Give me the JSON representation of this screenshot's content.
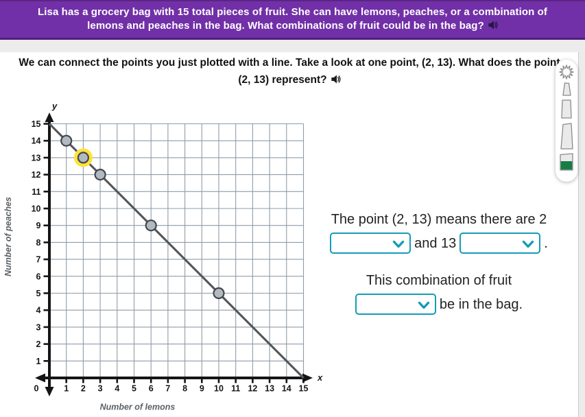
{
  "header": {
    "prompt": "Lisa has a grocery bag with 15 total pieces of fruit. She can have lemons, peaches, or a combination of lemons and peaches in the bag. What combinations of fruit could be in the bag?",
    "background_color": "#7130a7"
  },
  "question": {
    "text": "We can connect the points you just plotted with a line. Take a look at one point, (2, 13). What does the point (2, 13) represent?"
  },
  "answer": {
    "sentence1_part1": "The point (2, 13) means there are 2",
    "sentence1_part2": "and 13",
    "sentence1_part3": ".",
    "dropdown1_value": "",
    "dropdown2_value": "",
    "sentence2_part1": "This combination of fruit",
    "sentence2_part2": "be in the bag.",
    "dropdown3_value": "",
    "accent_color": "#149bb8"
  },
  "toolbar": {
    "sun_icon": "sun-burst-icon",
    "segments": [
      {
        "name": "tower-piece-1",
        "progress": 0
      },
      {
        "name": "tower-piece-2",
        "progress": 0
      },
      {
        "name": "tower-piece-3",
        "progress": 0
      },
      {
        "name": "tower-piece-4",
        "progress": 0.55
      }
    ],
    "progress_color": "#177d45"
  },
  "chart_data": {
    "type": "line",
    "title": "",
    "xlabel": "Number of lemons",
    "ylabel": "Number of peaches",
    "x_axis_letter": "x",
    "y_axis_letter": "y",
    "xlim": [
      0,
      15
    ],
    "ylim": [
      0,
      15
    ],
    "x_ticks": [
      0,
      1,
      2,
      3,
      4,
      5,
      6,
      7,
      8,
      9,
      10,
      11,
      12,
      13,
      14,
      15
    ],
    "y_ticks": [
      1,
      2,
      3,
      4,
      5,
      6,
      7,
      8,
      9,
      10,
      11,
      12,
      13,
      14,
      15
    ],
    "grid": true,
    "legend": false,
    "line": {
      "x": [
        0,
        15
      ],
      "y": [
        15,
        0
      ]
    },
    "points": [
      [
        1,
        14
      ],
      [
        2,
        13
      ],
      [
        3,
        12
      ],
      [
        6,
        9
      ],
      [
        10,
        5
      ]
    ],
    "highlighted_point": [
      2,
      13
    ],
    "colors": {
      "grid": "#8e9ca8",
      "axis": "#151515",
      "line": "#55585c",
      "point_fill": "#b2bac1",
      "point_stroke": "#44484d",
      "highlight": "#ffe239",
      "axis_label": "#5c6165"
    }
  }
}
